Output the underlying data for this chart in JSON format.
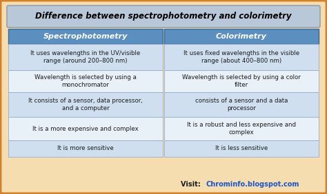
{
  "title": "Difference between spectrophotometry and colorimetry",
  "col1_header": "Spectrophotometry",
  "col2_header": "Colorimetry",
  "rows": [
    [
      "It uses wavelengths in the UV/visible\nrange (around 200–800 nm)",
      "It uses fixed wavelengths in the visible\nrange (about 400–800 nm)"
    ],
    [
      "Wavelength is selected by using a\nmonochromator",
      "Wavelength is selected by using a color\nfilter"
    ],
    [
      "It consists of a sensor, data processor,\nand a computer",
      "consists of a sensor and a data\nprocessor"
    ],
    [
      "It is a more expensive and complex",
      "It is a robust and less expensive and\ncomplex"
    ],
    [
      "It is more sensitive",
      "It is less sensitive"
    ]
  ],
  "outer_border_color": "#d4812a",
  "outer_bg_color": "#f5ddb0",
  "title_bg_color": "#b8c8d8",
  "header_bg_color": "#5b8fbf",
  "header_text_color": "#ffffff",
  "row_bg_even": "#d0dff0",
  "row_bg_odd": "#e8f0f8",
  "cell_text_color": "#1a1a1a",
  "title_text_color": "#000000",
  "footer_visit_color": "#1a1a1a",
  "footer_link_color": "#1a55cc",
  "footer_visit": "Visit: ",
  "footer_link": "Chrominfo.blogspot.com",
  "bg_color": "#f8e8c8"
}
